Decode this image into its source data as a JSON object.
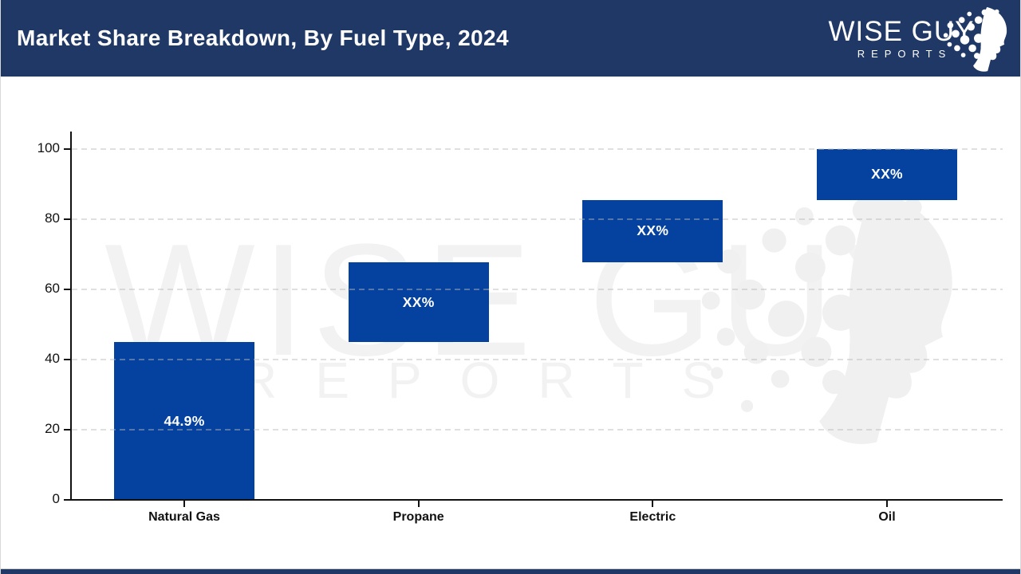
{
  "header": {
    "title": "Market Share Breakdown, By Fuel Type, 2024",
    "bg_color": "#1F3866",
    "logo": {
      "wordmark": "WISE GUY",
      "subtext": "REPORTS"
    }
  },
  "watermark": {
    "wordmark": "WISE GUY",
    "subtext": "REPORTS"
  },
  "chart_data": {
    "type": "bar",
    "subtype": "waterfall",
    "title": "Market Share Breakdown, By Fuel Type, 2024",
    "categories": [
      "Natural Gas",
      "Propane",
      "Electric",
      "Oil"
    ],
    "segments": [
      {
        "category": "Natural Gas",
        "start": 0,
        "end": 44.9,
        "label": "44.9%"
      },
      {
        "category": "Propane",
        "start": 44.9,
        "end": 67.7,
        "label": "XX%"
      },
      {
        "category": "Electric",
        "start": 67.7,
        "end": 85.5,
        "label": "XX%"
      },
      {
        "category": "Oil",
        "start": 85.5,
        "end": 100,
        "label": "XX%"
      }
    ],
    "ylim": [
      0,
      100
    ],
    "yticks": [
      0,
      20,
      40,
      60,
      80,
      100
    ],
    "grid": "horizontal-dashed",
    "legend": "none",
    "bar_color": "#05419E",
    "value_label_color": "#FFFFFF",
    "axis_color": "#111111"
  }
}
